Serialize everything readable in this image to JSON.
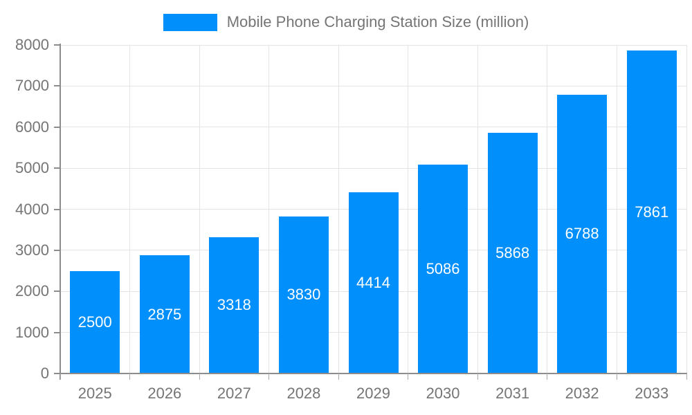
{
  "legend": {
    "label": "Mobile Phone Charging Station Size (million)"
  },
  "chart_data": {
    "type": "bar",
    "title": "Mobile Phone Charging Station Size (million)",
    "series_name": "Mobile Phone Charging Station Size (million)",
    "categories": [
      "2025",
      "2026",
      "2027",
      "2028",
      "2029",
      "2030",
      "2031",
      "2032",
      "2033"
    ],
    "values": [
      2500,
      2875,
      3318,
      3830,
      4414,
      5086,
      5868,
      6788,
      7861
    ],
    "value_labels": [
      "2500",
      "2875",
      "3318",
      "3830",
      "4414",
      "5086",
      "5868",
      "6788",
      "7861"
    ],
    "xlabel": "",
    "ylabel": "",
    "ylim": [
      0,
      8000
    ],
    "ytick_step": 1000,
    "ytick_labels": [
      "0",
      "1000",
      "2000",
      "3000",
      "4000",
      "5000",
      "6000",
      "7000",
      "8000"
    ],
    "grid": true,
    "legend_position": "top",
    "value_label_position": "inside-center",
    "colors": {
      "bar": "#008ffb",
      "bar_value_label": "#ffffff",
      "axis_text": "#757575",
      "legend_text": "#757575",
      "axis_line": "#8c8c8c",
      "gridline": "#e4e4e4",
      "background": "#ffffff"
    }
  }
}
